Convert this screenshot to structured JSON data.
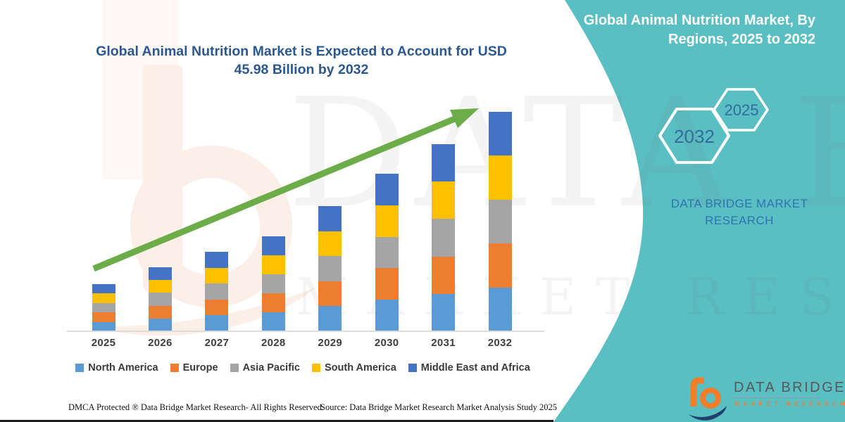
{
  "page": {
    "chart_title": "Global Animal Nutrition Market is Expected to Account for USD 45.98 Billion by 2032",
    "footer_left": "DMCA Protected ® Data Bridge Market Research-  All Rights Reserved.",
    "footer_source": "Source: Data Bridge Market Research  Market Analysis Study 2025"
  },
  "side_panel": {
    "heading": "Global Animal Nutrition Market, By Regions, 2025 to 2032",
    "hexagons": [
      {
        "year": "2032"
      },
      {
        "year": "2025"
      }
    ],
    "brand_text": "DATA BRIDGE MARKET RESEARCH",
    "accent_color": "#5ABFC2"
  },
  "logo": {
    "name": "DATA BRIDGE",
    "subtitle": "MARKET RESEARCH"
  },
  "watermark": {
    "line1": "DATA BRIDGE",
    "line2": "MARKET RESEARCH"
  },
  "chart_data": {
    "type": "bar",
    "stacked": true,
    "title": "Global Animal Nutrition Market is Expected to Account for USD 45.98 Billion by 2032",
    "unit": "USD Billion",
    "categories": [
      "2025",
      "2026",
      "2027",
      "2028",
      "2029",
      "2030",
      "2031",
      "2032"
    ],
    "totals": [
      9.9,
      13.4,
      16.6,
      19.9,
      26.2,
      33.0,
      39.2,
      45.98
    ],
    "series": [
      {
        "name": "North America",
        "color": "#5B9BD5",
        "values": [
          1.98,
          2.68,
          3.32,
          3.98,
          5.24,
          6.6,
          7.84,
          9.2
        ]
      },
      {
        "name": "Europe",
        "color": "#ED7D31",
        "values": [
          1.98,
          2.68,
          3.32,
          3.98,
          5.24,
          6.6,
          7.84,
          9.2
        ]
      },
      {
        "name": "Asia Pacific",
        "color": "#A5A5A5",
        "values": [
          1.98,
          2.68,
          3.32,
          3.98,
          5.24,
          6.6,
          7.84,
          9.2
        ]
      },
      {
        "name": "South America",
        "color": "#FFC000",
        "values": [
          1.98,
          2.68,
          3.32,
          3.98,
          5.24,
          6.6,
          7.84,
          9.2
        ]
      },
      {
        "name": "Middle East and Africa",
        "color": "#4472C4",
        "values": [
          1.98,
          2.68,
          3.32,
          3.98,
          5.24,
          6.6,
          7.84,
          9.2
        ]
      }
    ],
    "legend_position": "bottom",
    "grid": false,
    "y_axis_visible": false,
    "ylim": [
      0,
      46
    ],
    "annotations": [
      "green upward trend arrow from 2025 bar to 2032 bar"
    ],
    "values_estimated_from_pixels": true
  }
}
